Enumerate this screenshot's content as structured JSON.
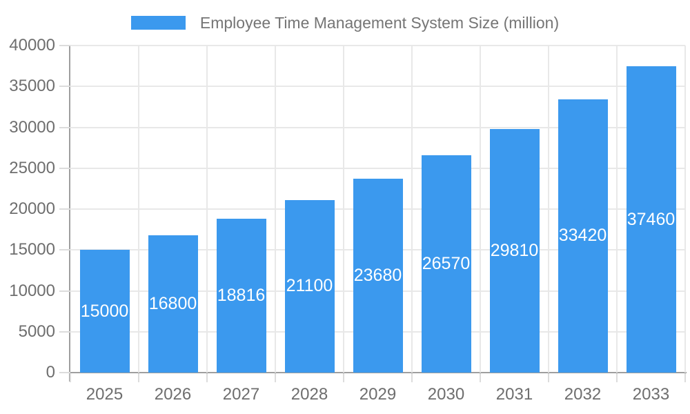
{
  "legend": {
    "label": "Employee Time Management System Size (million)"
  },
  "chart_data": {
    "type": "bar",
    "title": "Employee Time Management System Size (million)",
    "categories": [
      "2025",
      "2026",
      "2027",
      "2028",
      "2029",
      "2030",
      "2031",
      "2032",
      "2033"
    ],
    "series": [
      {
        "name": "Employee Time Management System Size (million)",
        "values": [
          15000,
          16800,
          18816,
          21100,
          23680,
          26570,
          29810,
          33420,
          37460
        ]
      }
    ],
    "values": [
      15000,
      16800,
      18816,
      21100,
      23680,
      26570,
      29810,
      33420,
      37460
    ],
    "data_labels": [
      "15000",
      "16800",
      "18816",
      "21100",
      "23680",
      "26570",
      "29810",
      "33420",
      "37460"
    ],
    "xlabel": "",
    "ylabel": "",
    "ylim": [
      0,
      40000
    ],
    "yticks": [
      0,
      5000,
      10000,
      15000,
      20000,
      25000,
      30000,
      35000,
      40000
    ],
    "ytick_labels": [
      "0",
      "5000",
      "10000",
      "15000",
      "20000",
      "25000",
      "30000",
      "35000",
      "40000"
    ],
    "grid": true,
    "legend_position": "top"
  },
  "colors": {
    "bar": "#3B99EE",
    "bar_value_label": "#FFFFFF",
    "axis_line": "#9E9E9E",
    "gridline": "#E8E8E8",
    "tick": "#DCDCDC",
    "tick_label": "#6E6E6E",
    "legend_text": "#757575",
    "background": "#FFFFFF"
  }
}
